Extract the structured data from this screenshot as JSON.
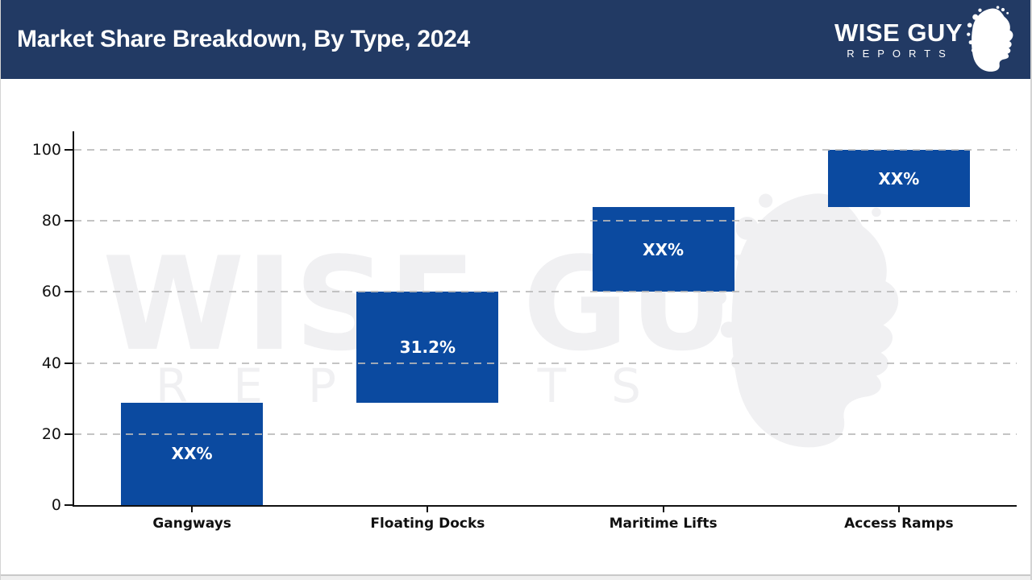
{
  "header": {
    "title": "Market Share Breakdown, By Type, 2024",
    "logo": {
      "name": "WISE GUY",
      "sub": "REPORTS"
    }
  },
  "watermark": {
    "line1": "WISE GUY",
    "line2": "REPORTS"
  },
  "colors": {
    "header_bg": "#223a64",
    "title_text": "#ffffff",
    "bar_fill": "#0b4aa0",
    "bar_label": "#ffffff",
    "axis": "#111111",
    "tick_label": "#111111",
    "watermark": "#f0f0f2",
    "page_bg": "#ffffff",
    "border": "#d4d4d4"
  },
  "chart_data": {
    "type": "bar",
    "variant": "waterfall (floating cumulative segments)",
    "title": "Market Share Breakdown, By Type, 2024",
    "categories": [
      "Gangways",
      "Floating Docks",
      "Maritime Lifts",
      "Access Ramps"
    ],
    "segments": [
      {
        "category": "Gangways",
        "start": 0,
        "end": 28.8,
        "label": "XX%"
      },
      {
        "category": "Floating Docks",
        "start": 28.8,
        "end": 60,
        "label": "31.2%"
      },
      {
        "category": "Maritime Lifts",
        "start": 60,
        "end": 83.8,
        "label": "XX%"
      },
      {
        "category": "Access Ramps",
        "start": 83.8,
        "end": 100,
        "label": "XX%"
      }
    ],
    "xlabel": "",
    "ylabel": "",
    "yticks": [
      0,
      20,
      40,
      60,
      80,
      100
    ],
    "ylim": [
      0,
      105
    ],
    "grid": "horizontal dashed light-gray, drawn above bars",
    "legend": "none"
  }
}
